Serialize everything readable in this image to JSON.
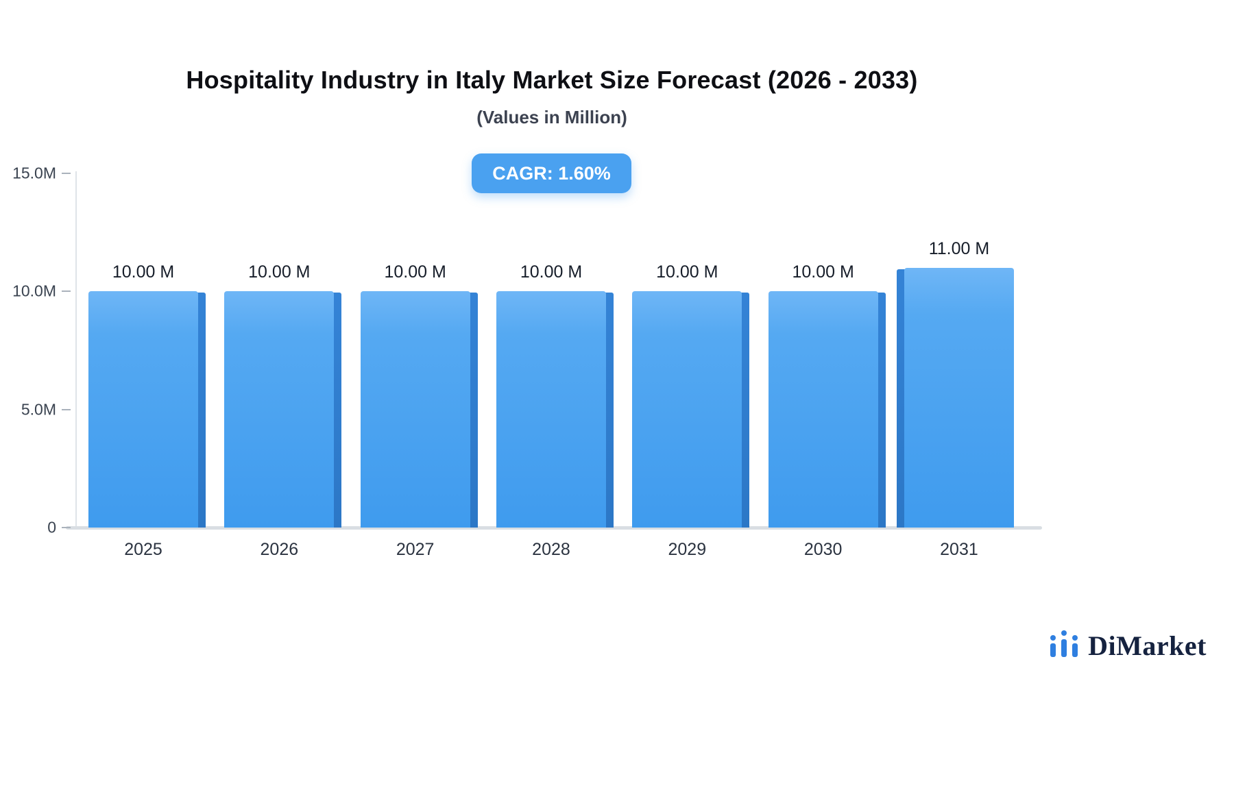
{
  "header": {
    "title": "Hospitality Industry in Italy Market Size Forecast (2026 - 2033)",
    "subtitle": "(Values in Million)"
  },
  "badge": {
    "label": "CAGR: 1.60%"
  },
  "logo": {
    "text": "DiMarket"
  },
  "chart_data": {
    "type": "bar",
    "title": "Hospitality Industry in Italy Market Size Forecast (2026 - 2033)",
    "subtitle": "(Values in Million)",
    "categories": [
      "2025",
      "2026",
      "2027",
      "2028",
      "2029",
      "2030",
      "2031"
    ],
    "values": [
      10,
      10,
      10,
      10,
      10,
      10,
      11
    ],
    "value_labels": [
      "10.00 M",
      "10.00 M",
      "10.00 M",
      "10.00 M",
      "10.00 M",
      "10.00 M",
      "11.00 M"
    ],
    "xlabel": "",
    "ylabel": "",
    "ylim": [
      0,
      15
    ],
    "yticks": [
      {
        "value": 15,
        "label": "15.0M"
      },
      {
        "value": 10,
        "label": "10.0M"
      },
      {
        "value": 5,
        "label": "5.0M"
      },
      {
        "value": 0,
        "label": "0"
      }
    ],
    "grid": false,
    "legend": false,
    "cagr": "CAGR: 1.60%",
    "colors": {
      "bar_top": "#6fb6f6",
      "bar_bottom": "#3f9bee",
      "bar_side": "#2c77c6",
      "badge": "#4aa1f0",
      "axis": "#d9dee3"
    }
  }
}
